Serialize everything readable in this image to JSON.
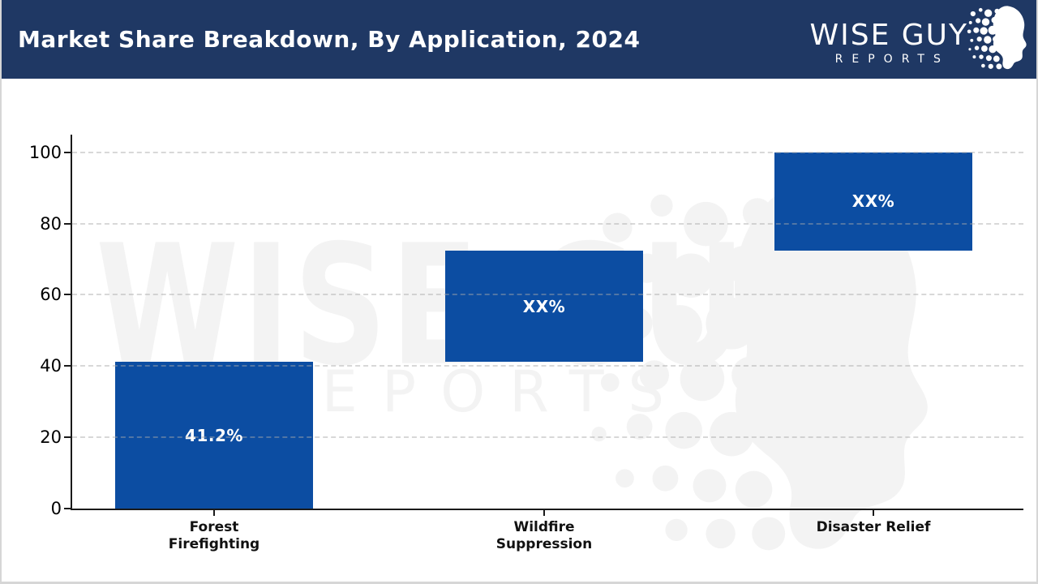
{
  "header": {
    "title": "Market Share Breakdown, By Application, 2024",
    "logo": {
      "wordmark": "WISE GUY",
      "subtext": "REPORTS"
    }
  },
  "watermark": {
    "line1": "WISE GUY",
    "line2": "REPORTS"
  },
  "colors": {
    "header_bg": "#1f3864",
    "bar_blue": "#0c4da2",
    "title_text": "#ffffff",
    "watermark_gray": "#f3f3f3"
  },
  "chart_data": {
    "type": "bar",
    "subtype": "waterfall-stacked-percentage",
    "title": "Market Share Breakdown, By Application, 2024",
    "xlabel": "",
    "ylabel": "",
    "ylim": [
      0,
      105
    ],
    "yticks": [
      0,
      20,
      40,
      60,
      80,
      100
    ],
    "grid": "horizontal dashed gridlines drawn above bars",
    "legend_position": "none",
    "categories": [
      "Forest\nFirefighting",
      "Wildfire\nSuppression",
      "Disaster Relief"
    ],
    "segments": [
      {
        "category": "Forest Firefighting",
        "start": 0,
        "end": 41.2,
        "value_label": "41.2%"
      },
      {
        "category": "Wildfire Suppression",
        "start": 41.2,
        "end": 72.4,
        "value_label": "XX%"
      },
      {
        "category": "Disaster Relief",
        "start": 72.4,
        "end": 100,
        "value_label": "XX%"
      }
    ],
    "bar_color": "#0c4da2",
    "value_label_color": "#ffffff"
  }
}
